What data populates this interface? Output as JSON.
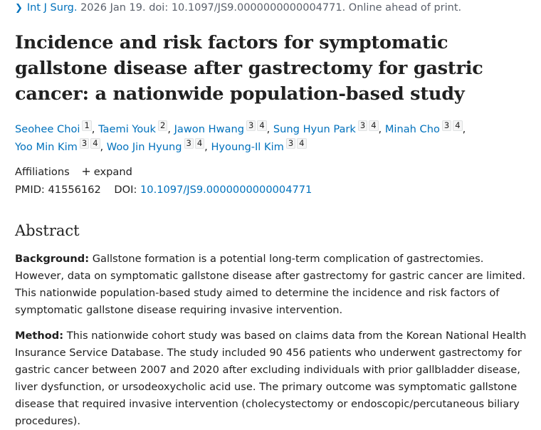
{
  "citation": {
    "journal": "Int J Surg.",
    "rest": " 2026 Jan 19. doi: 10.1097/JS9.0000000000004771. Online ahead of print."
  },
  "title": "Incidence and risk factors for symptomatic gallstone disease after gastrectomy for gastric cancer: a nationwide population-based study",
  "authors": [
    {
      "name": "Seohee Choi",
      "affs": [
        "1"
      ]
    },
    {
      "name": "Taemi Youk",
      "affs": [
        "2"
      ]
    },
    {
      "name": "Jawon Hwang",
      "affs": [
        "3",
        "4"
      ]
    },
    {
      "name": "Sung Hyun Park",
      "affs": [
        "3",
        "4"
      ]
    },
    {
      "name": "Minah Cho",
      "affs": [
        "3",
        "4"
      ]
    },
    {
      "name": "Yoo Min Kim",
      "affs": [
        "3",
        "4"
      ]
    },
    {
      "name": "Woo Jin Hyung",
      "affs": [
        "3",
        "4"
      ]
    },
    {
      "name": "Hyoung-Il Kim",
      "affs": [
        "3",
        "4"
      ]
    }
  ],
  "affiliations": {
    "label": "Affiliations",
    "expand": "expand"
  },
  "ids": {
    "pmid_label": "PMID:",
    "pmid": "41556162",
    "doi_label": "DOI:",
    "doi": "10.1097/JS9.0000000000004771"
  },
  "abstract": {
    "heading": "Abstract",
    "background_label": "Background:",
    "background_text": " Gallstone formation is a potential long-term complication of gastrectomies. However, data on symptomatic gallstone disease after gastrectomy for gastric cancer are limited. This nationwide population-based study aimed to determine the incidence and risk factors of symptomatic gallstone disease requiring invasive intervention.",
    "method_label": "Method:",
    "method_text": " This nationwide cohort study was based on claims data from the Korean National Health Insurance Service Database. The study included 90 456 patients who underwent gastrectomy for gastric cancer between 2007 and 2020 after excluding individuals with prior gallbladder disease, liver dysfunction, or ursodeoxycholic acid use. The primary outcome was symptomatic gallstone disease that required invasive intervention (cholecystectomy or endoscopic/percutaneous biliary procedures)."
  }
}
